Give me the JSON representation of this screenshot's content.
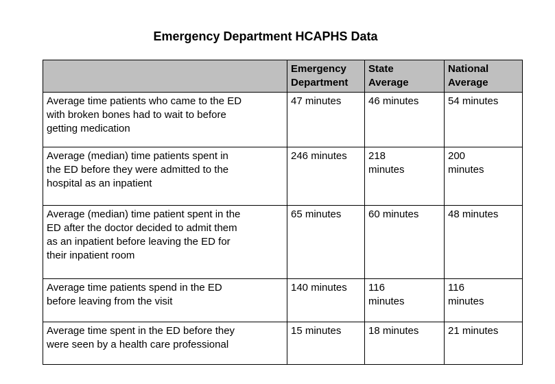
{
  "title": "Emergency Department HCAPHS Data",
  "colors": {
    "header_bg": "#bfbfbf",
    "border": "#000000",
    "text": "#000000",
    "page_bg": "#ffffff"
  },
  "table": {
    "header": {
      "col0": "",
      "col1": "Emergency\nDepartment",
      "col2": "State\nAverage",
      "col3": "National\nAverage"
    },
    "rows": [
      {
        "label": "Average time patients who came to the ED\nwith broken bones had to wait to before\ngetting medication",
        "ed": "47 minutes",
        "state": "46 minutes",
        "national": "54 minutes"
      },
      {
        "label": "Average (median) time patients spent in\nthe ED before they were admitted to the\nhospital as an inpatient",
        "ed": "246 minutes",
        "state": "218\nminutes",
        "national": "200\nminutes"
      },
      {
        "label": "Average (median) time patient spent in the\nED after the doctor decided to admit them\nas an inpatient before leaving the ED for\ntheir inpatient room",
        "ed": "65 minutes",
        "state": "60 minutes",
        "national": "48 minutes"
      },
      {
        "label": "Average time patients spend in the ED\nbefore leaving from the visit",
        "ed": "140 minutes",
        "state": "116\nminutes",
        "national": "116\nminutes"
      },
      {
        "label": "Average time spent in the ED before they\nwere seen by a health care professional",
        "ed": "15 minutes",
        "state": "18 minutes",
        "national": "21 minutes"
      }
    ]
  }
}
